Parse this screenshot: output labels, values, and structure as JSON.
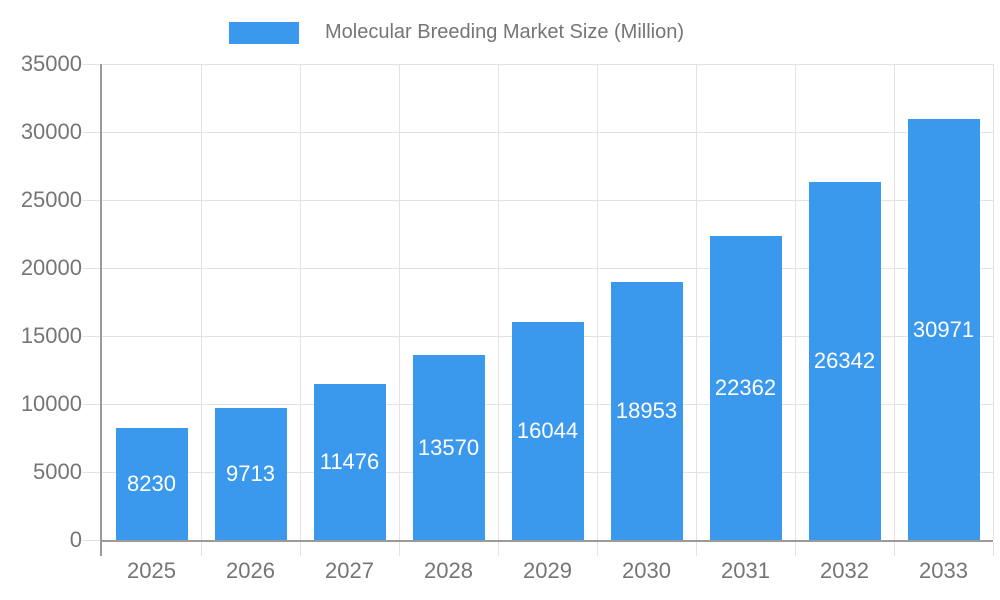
{
  "legend": {
    "items": [
      {
        "label": "Molecular Breeding Market Size (Million)",
        "color": "#3a99ec"
      }
    ],
    "position": "top"
  },
  "chart_data": {
    "type": "bar",
    "title": "Molecular Breeding Market Size (Million)",
    "series_name": "Molecular Breeding Market Size (Million)",
    "categories": [
      "2025",
      "2026",
      "2027",
      "2028",
      "2029",
      "2030",
      "2031",
      "2032",
      "2033"
    ],
    "values": [
      8230,
      9713,
      11476,
      13570,
      16044,
      18953,
      22362,
      26342,
      30971
    ],
    "xlabel": "",
    "ylabel": "",
    "ylim": [
      0,
      35000
    ],
    "yticks": [
      0,
      5000,
      10000,
      15000,
      20000,
      25000,
      30000,
      35000
    ],
    "grid": true,
    "legend_position": "top",
    "value_label_style": "white, centered inside bar",
    "colors": {
      "bar": "#3a99ec",
      "value_label": "#ffffff",
      "axis_text": "#757575",
      "gridline": "#e3e3e3",
      "axis_line": "#9a9a9a",
      "background": "#ffffff"
    }
  }
}
